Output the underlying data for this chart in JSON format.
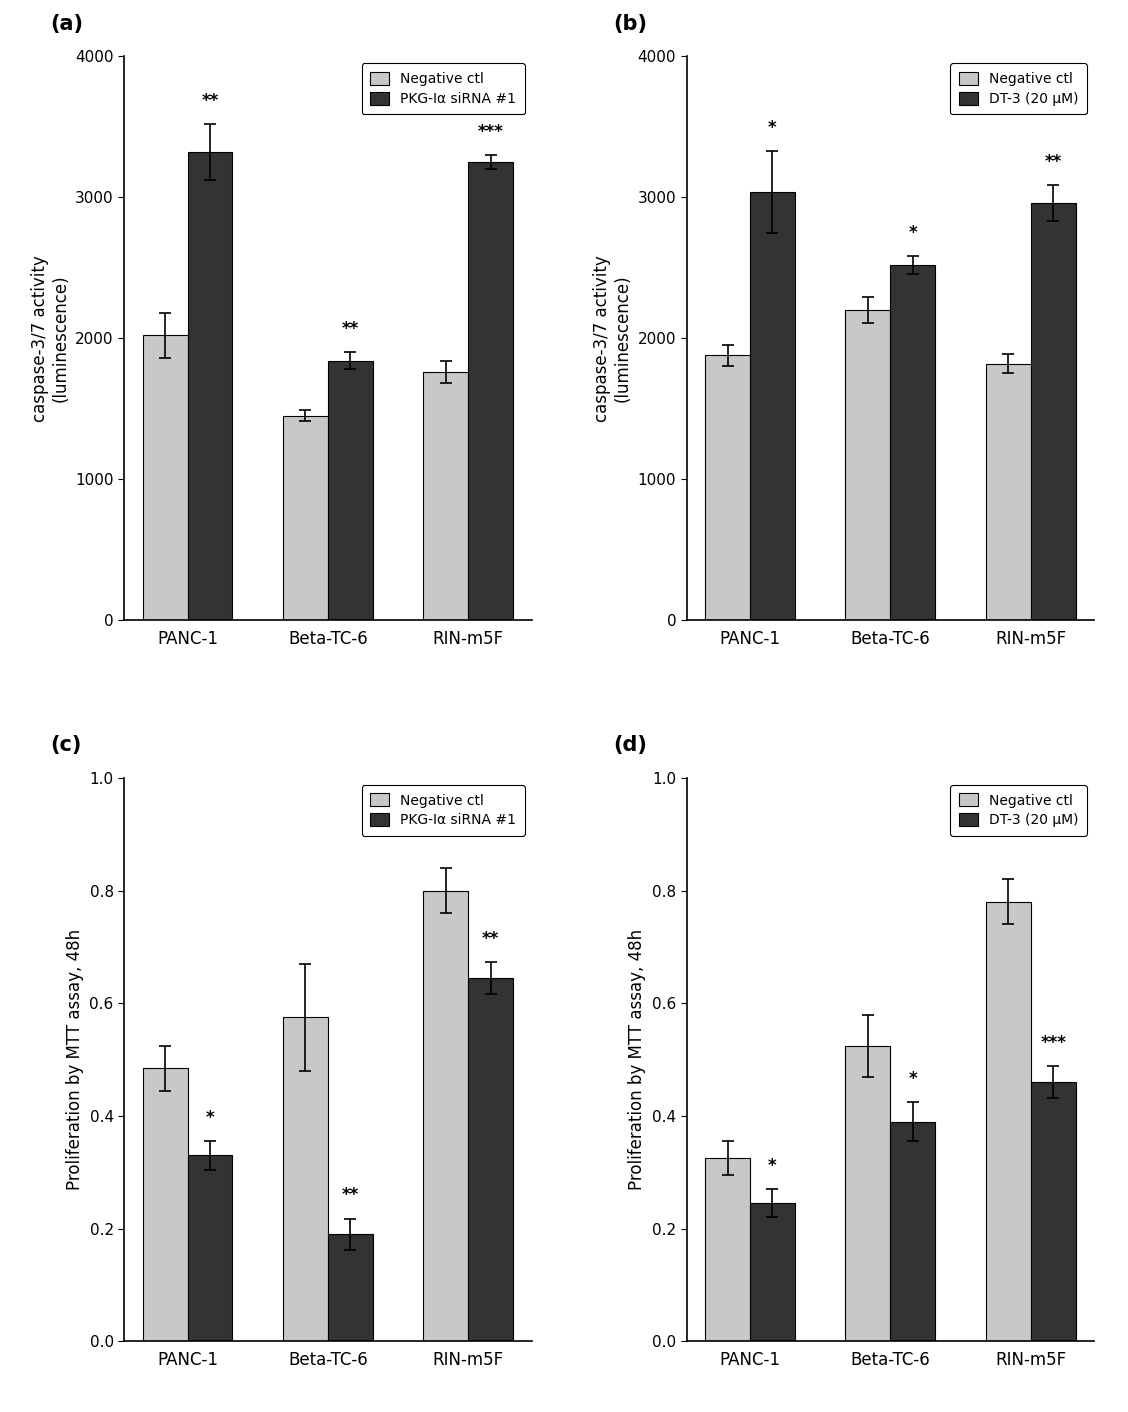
{
  "panel_a": {
    "title": "(a)",
    "categories": [
      "PANC-1",
      "Beta-TC-6",
      "RIN-m5F"
    ],
    "neg_ctl": [
      2020,
      1450,
      1760
    ],
    "treatment": [
      3320,
      1840,
      3250
    ],
    "neg_err": [
      160,
      40,
      80
    ],
    "trt_err": [
      200,
      60,
      50
    ],
    "sig_trt": [
      "**",
      "**",
      "***"
    ],
    "sig_trt_on_dark": [
      true,
      true,
      true
    ],
    "ylabel": "caspase-3/7 activity\n(luminescence)",
    "ylim": [
      0,
      4000
    ],
    "yticks": [
      0,
      1000,
      2000,
      3000,
      4000
    ],
    "legend1": "Negative ctl",
    "legend2": "PKG-Iα siRNA #1"
  },
  "panel_b": {
    "title": "(b)",
    "categories": [
      "PANC-1",
      "Beta-TC-6",
      "RIN-m5F"
    ],
    "neg_ctl": [
      1880,
      2200,
      1820
    ],
    "treatment": [
      3040,
      2520,
      2960
    ],
    "neg_err": [
      75,
      90,
      65
    ],
    "trt_err": [
      290,
      65,
      130
    ],
    "sig_trt": [
      "*",
      "*",
      "**"
    ],
    "sig_trt_on_dark": [
      true,
      true,
      true
    ],
    "ylabel": "caspase-3/7 activity\n(luminescence)",
    "ylim": [
      0,
      4000
    ],
    "yticks": [
      0,
      1000,
      2000,
      3000,
      4000
    ],
    "legend1": "Negative ctl",
    "legend2": "DT-3 (20 μM)"
  },
  "panel_c": {
    "title": "(c)",
    "categories": [
      "PANC-1",
      "Beta-TC-6",
      "RIN-m5F"
    ],
    "neg_ctl": [
      0.485,
      0.575,
      0.8
    ],
    "treatment": [
      0.33,
      0.19,
      0.645
    ],
    "neg_err": [
      0.04,
      0.095,
      0.04
    ],
    "trt_err": [
      0.025,
      0.028,
      0.028
    ],
    "sig_trt": [
      "*",
      "**",
      "**"
    ],
    "sig_trt_on_dark": [
      true,
      true,
      true
    ],
    "ylabel": "Proliferation by MTT assay, 48h",
    "ylim": [
      0,
      1.0
    ],
    "yticks": [
      0.0,
      0.2,
      0.4,
      0.6,
      0.8,
      1.0
    ],
    "legend1": "Negative ctl",
    "legend2": "PKG-Iα siRNA #1"
  },
  "panel_d": {
    "title": "(d)",
    "categories": [
      "PANC-1",
      "Beta-TC-6",
      "RIN-m5F"
    ],
    "neg_ctl": [
      0.325,
      0.525,
      0.78
    ],
    "treatment": [
      0.245,
      0.39,
      0.46
    ],
    "neg_err": [
      0.03,
      0.055,
      0.04
    ],
    "trt_err": [
      0.025,
      0.035,
      0.028
    ],
    "sig_trt": [
      "*",
      "*",
      "***"
    ],
    "sig_trt_on_dark": [
      true,
      true,
      true
    ],
    "ylabel": "Proliferation by MTT assay, 48h",
    "ylim": [
      0,
      1.0
    ],
    "yticks": [
      0.0,
      0.2,
      0.4,
      0.6,
      0.8,
      1.0
    ],
    "legend1": "Negative ctl",
    "legend2": "DT-3 (20 μM)"
  },
  "color_light": "#C8C8C8",
  "color_dark": "#333333",
  "bar_width": 0.32,
  "fig_bg": "#FFFFFF",
  "border_color": "#000000",
  "border_lw": 2.5
}
